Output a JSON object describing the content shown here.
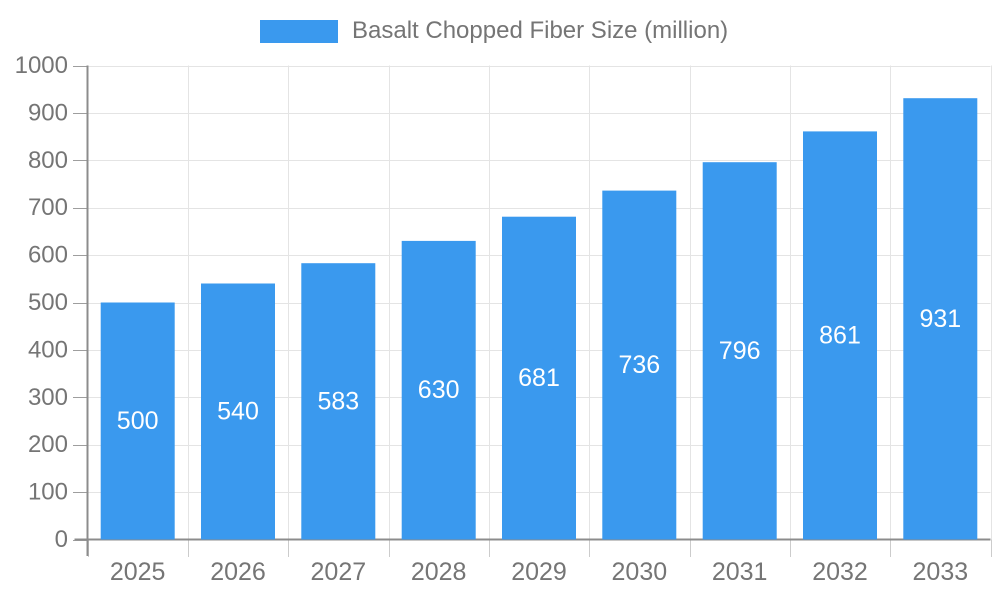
{
  "chart_data": {
    "type": "bar",
    "title": "",
    "legend_label": "Basalt Chopped Fiber Size (million)",
    "legend_position": "top-center",
    "categories": [
      "2025",
      "2026",
      "2027",
      "2028",
      "2029",
      "2030",
      "2031",
      "2032",
      "2033"
    ],
    "series": [
      {
        "name": "Basalt Chopped Fiber Size (million)",
        "values": [
          500,
          540,
          583,
          630,
          681,
          736,
          796,
          861,
          931
        ]
      }
    ],
    "value_labels_shown": true,
    "xlabel": "",
    "ylabel": "",
    "ylim": [
      0,
      1000
    ],
    "ytick_step": 100,
    "yticks": [
      0,
      100,
      200,
      300,
      400,
      500,
      600,
      700,
      800,
      900,
      1000
    ],
    "grid": true,
    "colors": {
      "bar": "#3a99ee",
      "value_label": "#ffffff",
      "axis_text": "#757575",
      "axis_line": "#8c8c8c",
      "gridline": "#e4e4e4",
      "y_tick": "#9e9e9e",
      "x_tick": "#cccccc",
      "background": "#ffffff"
    }
  }
}
